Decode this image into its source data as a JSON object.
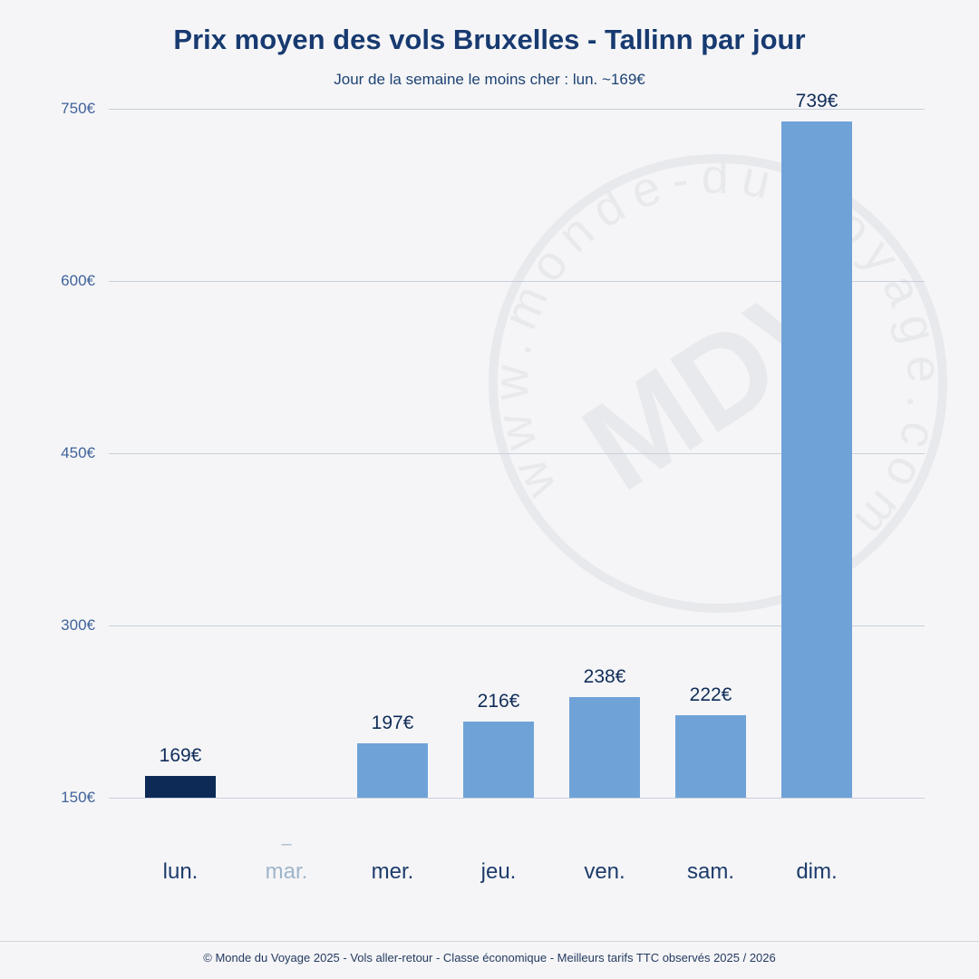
{
  "title": "Prix moyen des vols Bruxelles - Tallinn par jour",
  "subtitle": "Jour de la semaine le moins cher : lun. ~169€",
  "footer": "© Monde du Voyage 2025 - Vols aller-retour - Classe économique - Meilleurs tarifs TTC observés 2025 / 2026",
  "watermark": {
    "ring_text": "www.monde-du-voyage.com ·",
    "center_text": "MDV"
  },
  "chart_data": {
    "type": "bar",
    "title": "Prix moyen des vols Bruxelles - Tallinn par jour",
    "subtitle": "Jour de la semaine le moins cher : lun. ~169€",
    "categories": [
      "lun.",
      "mar.",
      "mer.",
      "jeu.",
      "ven.",
      "sam.",
      "dim."
    ],
    "values": [
      169,
      null,
      197,
      216,
      238,
      222,
      739
    ],
    "labels": [
      "169€",
      "",
      "197€",
      "216€",
      "238€",
      "222€",
      "739€"
    ],
    "no_data_label": "–",
    "xlabel": "",
    "ylabel": "",
    "ylim": [
      150,
      750
    ],
    "yticks": [
      150,
      300,
      450,
      600,
      750
    ],
    "ytick_labels": [
      "150€",
      "300€",
      "450€",
      "600€",
      "750€"
    ],
    "grid": true,
    "legend": false,
    "highlight_index": 0,
    "colors": {
      "bar": "#6fa3d8",
      "bar_highlight": "#0d2a56",
      "grid": "#c8d0db",
      "axis_text": "#41639b",
      "value_text": "#102d59",
      "muted_text": "#9fb4ca",
      "background": "#f5f5f7"
    }
  }
}
